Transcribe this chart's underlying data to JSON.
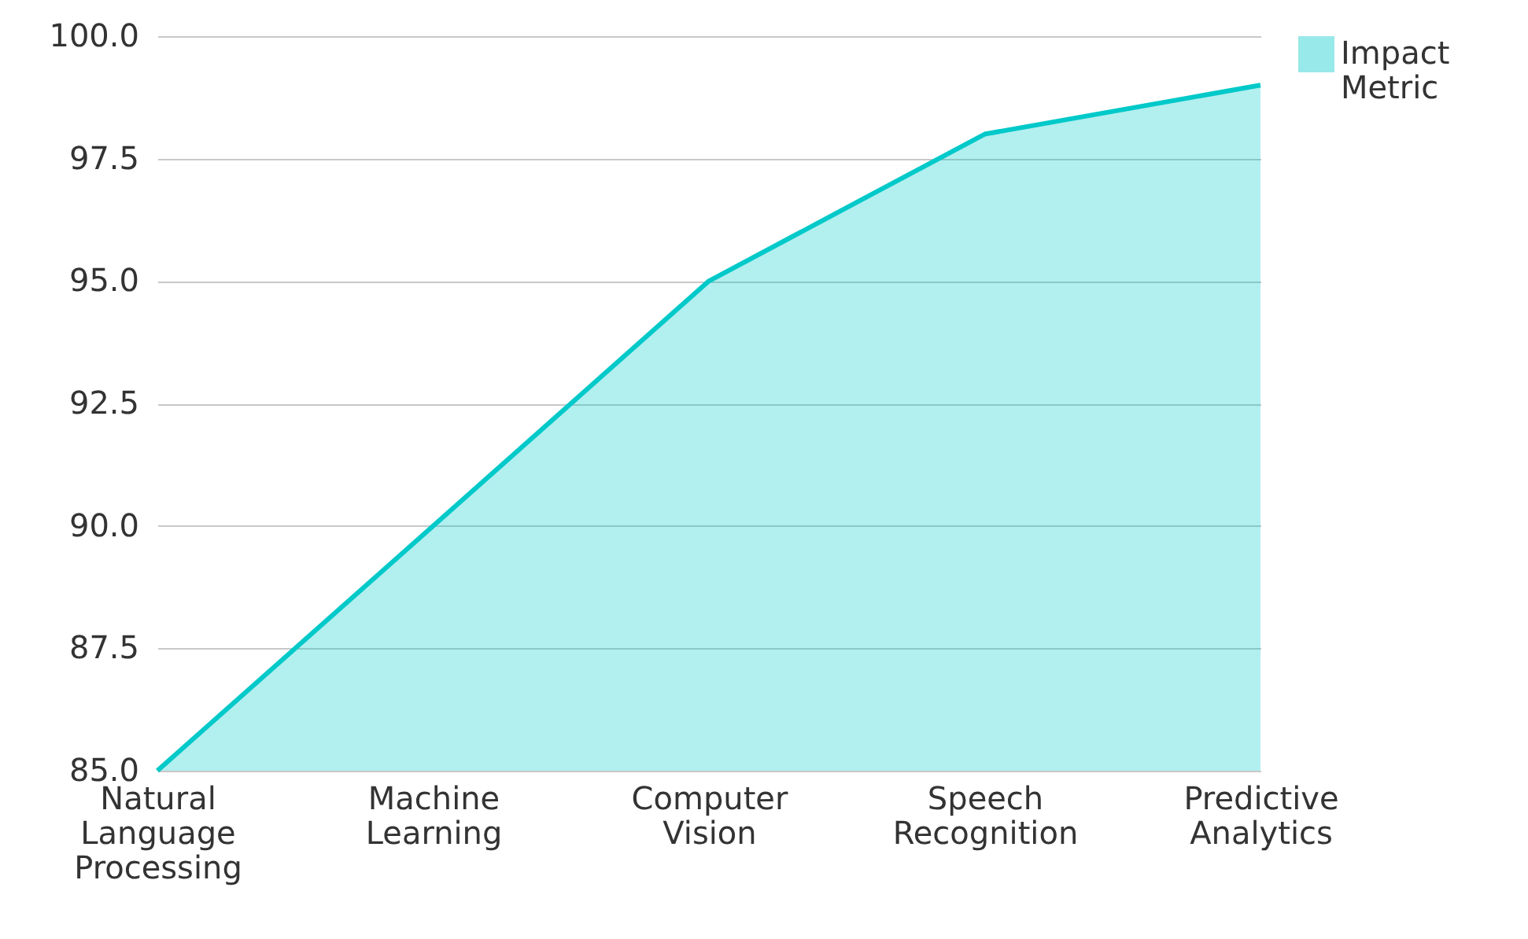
{
  "chart_data": {
    "type": "area",
    "categories": [
      "Natural Language Processing",
      "Machine Learning",
      "Computer Vision",
      "Speech Recognition",
      "Predictive Analytics"
    ],
    "series": [
      {
        "name": "Impact Metric",
        "color": "#00c9c9",
        "values": [
          85,
          90,
          95,
          98,
          99
        ]
      }
    ],
    "ylim": [
      85,
      100
    ],
    "yticks": [
      {
        "value": 85,
        "label": "85.0"
      },
      {
        "value": 87.5,
        "label": "87.5"
      },
      {
        "value": 90,
        "label": "90.0"
      },
      {
        "value": 92.5,
        "label": "92.5"
      },
      {
        "value": 95,
        "label": "95.0"
      },
      {
        "value": 97.5,
        "label": "97.5"
      },
      {
        "value": 100,
        "label": "100.0"
      }
    ],
    "grid": "y",
    "legend": "top right"
  }
}
